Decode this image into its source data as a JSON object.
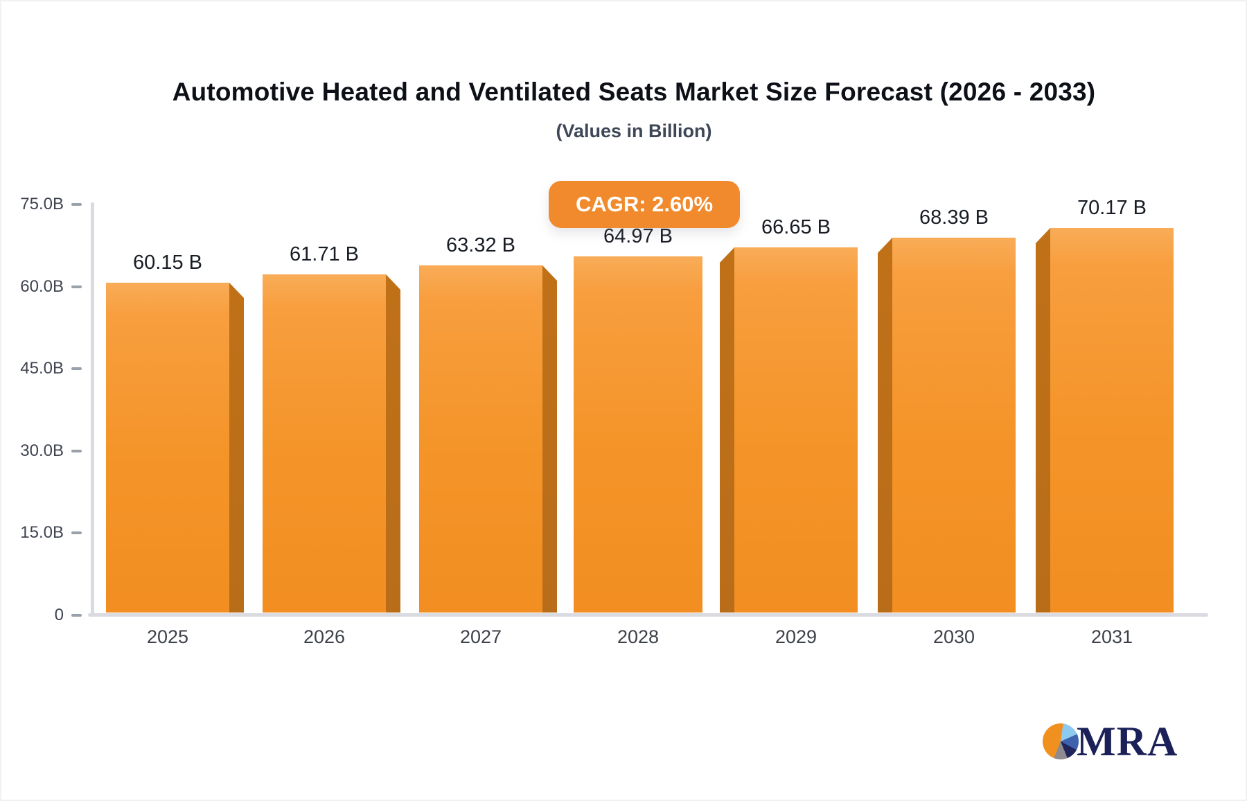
{
  "title": "Automotive Heated and Ventilated Seats Market Size Forecast (2026 - 2033)",
  "subtitle": "(Values in Billion)",
  "cagr_badge": "CAGR: 2.60%",
  "logo": {
    "text": "MRA"
  },
  "colors": {
    "bar_face_top": "#f9ac58",
    "bar_face_bottom": "#f28e22",
    "bar_side": "#b96d19",
    "badge": "#f08a2c",
    "axis": "#d9dbe1",
    "tick_text": "#3f4450",
    "logo_navy": "#1b2158"
  },
  "chart_data": {
    "type": "bar",
    "title": "Automotive Heated and Ventilated Seats Market Size Forecast (2026 - 2033)",
    "subtitle": "(Values in Billion)",
    "categories": [
      "2025",
      "2026",
      "2027",
      "2028",
      "2029",
      "2030",
      "2031"
    ],
    "values": [
      60.15,
      61.71,
      63.32,
      64.97,
      66.65,
      68.39,
      70.17
    ],
    "bar_labels": [
      "60.15 B",
      "61.71 B",
      "63.32 B",
      "64.97 B",
      "66.65 B",
      "68.39 B",
      "70.17 B"
    ],
    "annotation": "CAGR: 2.60%",
    "xlabel": "",
    "ylabel": "",
    "ylim": [
      0,
      75
    ],
    "ytick_labels": [
      "75.0B",
      "60.0B",
      "45.0B",
      "30.0B",
      "15.0B",
      "0"
    ],
    "ytick_values": [
      75,
      60,
      45,
      30,
      15,
      0
    ],
    "grid": false,
    "legend": false
  }
}
